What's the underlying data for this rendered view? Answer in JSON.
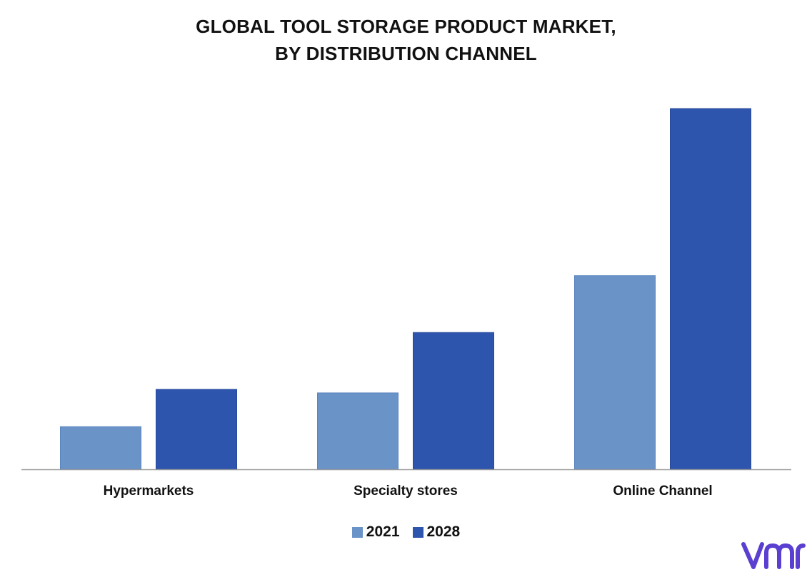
{
  "chart_data": {
    "type": "bar",
    "title": [
      "GLOBAL TOOL STORAGE PRODUCT MARKET,",
      "BY DISTRIBUTION CHANNEL"
    ],
    "categories": [
      "Hypermarkets",
      "Specialty stores",
      "Online Channel"
    ],
    "series": [
      {
        "name": "2021",
        "color": "#6a93c8",
        "values": [
          12,
          21.5,
          54.5
        ]
      },
      {
        "name": "2028",
        "color": "#2e55ad",
        "values": [
          22.5,
          38.5,
          101.5
        ]
      }
    ],
    "ylim": [
      0,
      110
    ],
    "grid": false,
    "legend_position": "bottom-center"
  },
  "logo": {
    "icon": "vmr-logo-icon",
    "color": "#5a3fd1"
  }
}
